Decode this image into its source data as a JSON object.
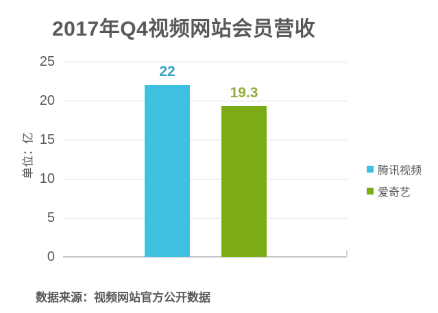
{
  "title": "2017年Q4视频网站会员营收",
  "source_note": "数据来源：视频网站官方公开数据",
  "colors": {
    "background": "#ffffff",
    "text": "#595959",
    "gridline": "#dcdcdc",
    "axis_line": "#c6c6c6",
    "tencent_cyan": "#3EC1E1",
    "iqiyi_green": "#7CAB15"
  },
  "chart_data": {
    "type": "bar",
    "title": "2017年Q4视频网站会员营收",
    "categories": [
      "腾讯视频",
      "爱奇艺"
    ],
    "values": [
      22,
      19.3
    ],
    "xlabel": "",
    "ylabel": "单位：亿",
    "ylim": [
      0,
      25
    ],
    "yticks": [
      0,
      5,
      10,
      15,
      20,
      25
    ],
    "grid": true,
    "legend_position": "right",
    "series": [
      {
        "name": "腾讯视频",
        "slug": "tencent-video",
        "value": 22,
        "label": "22",
        "bar_color": "#3EC1E1",
        "label_color": "#3BA3C3"
      },
      {
        "name": "爱奇艺",
        "slug": "iqiyi",
        "value": 19.3,
        "label": "19.3",
        "bar_color": "#7CAB15",
        "label_color": "#8FAE3B"
      }
    ]
  }
}
